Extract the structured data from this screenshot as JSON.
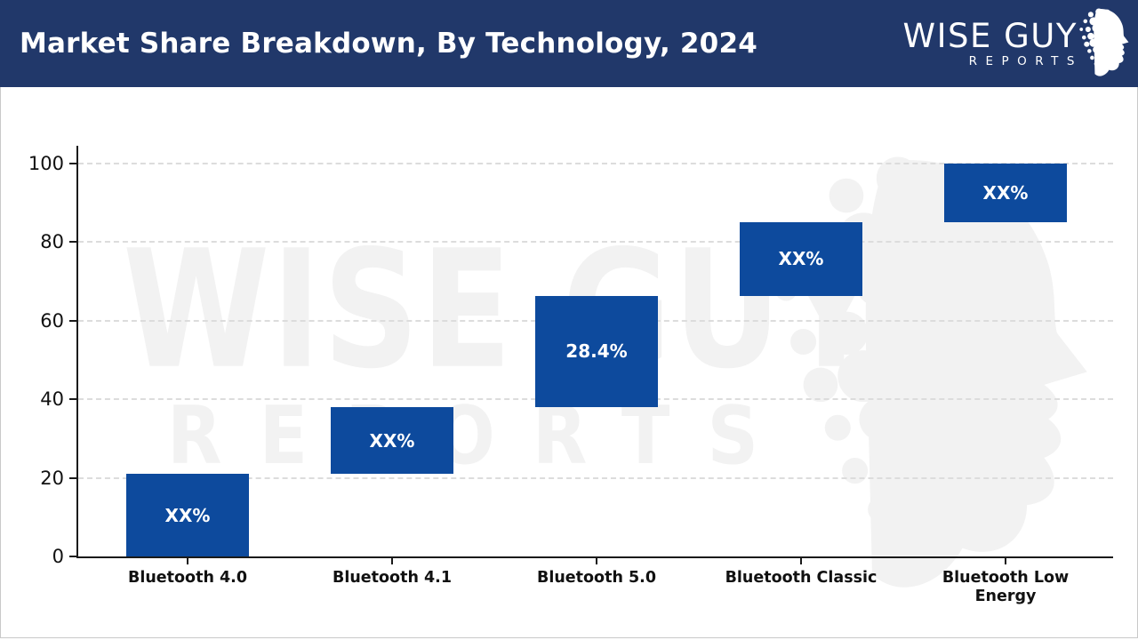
{
  "header": {
    "title": "Market Share Breakdown, By Technology, 2024",
    "logo": {
      "line1": "WISE GUY",
      "line2": "REPORTS"
    }
  },
  "watermark": {
    "line1": "WISE GUY",
    "line2": "REPORTS"
  },
  "chart_data": {
    "type": "bar",
    "subtype": "waterfall",
    "title": "Market Share Breakdown, By Technology, 2024",
    "categories": [
      "Bluetooth 4.0",
      "Bluetooth 4.1",
      "Bluetooth 5.0",
      "Bluetooth Classic",
      "Bluetooth Low Energy"
    ],
    "segments": [
      {
        "category": "Bluetooth 4.0",
        "start": 0,
        "end": 21,
        "label": "XX%"
      },
      {
        "category": "Bluetooth 4.1",
        "start": 21,
        "end": 38,
        "label": "XX%"
      },
      {
        "category": "Bluetooth 5.0",
        "start": 38,
        "end": 66.4,
        "label": "28.4%"
      },
      {
        "category": "Bluetooth Classic",
        "start": 66.4,
        "end": 85,
        "label": "XX%"
      },
      {
        "category": "Bluetooth Low Energy",
        "start": 85,
        "end": 100,
        "label": "XX%"
      }
    ],
    "y_ticks": [
      0,
      20,
      40,
      60,
      80,
      100
    ],
    "ylim": [
      0,
      104.5
    ],
    "xlabel": "",
    "ylabel": "",
    "grid": "horizontal-dashed",
    "legend": "none",
    "bar_color": "#0d4a9d",
    "bar_label_color": "#ffffff"
  },
  "colors": {
    "header_bg": "#21386a",
    "header_text": "#ffffff",
    "bar": "#0d4a9d",
    "grid": "#dcdcdc",
    "axis": "#1a1a1a",
    "border": "#c9c9c9",
    "watermark": "#f2f2f2"
  }
}
